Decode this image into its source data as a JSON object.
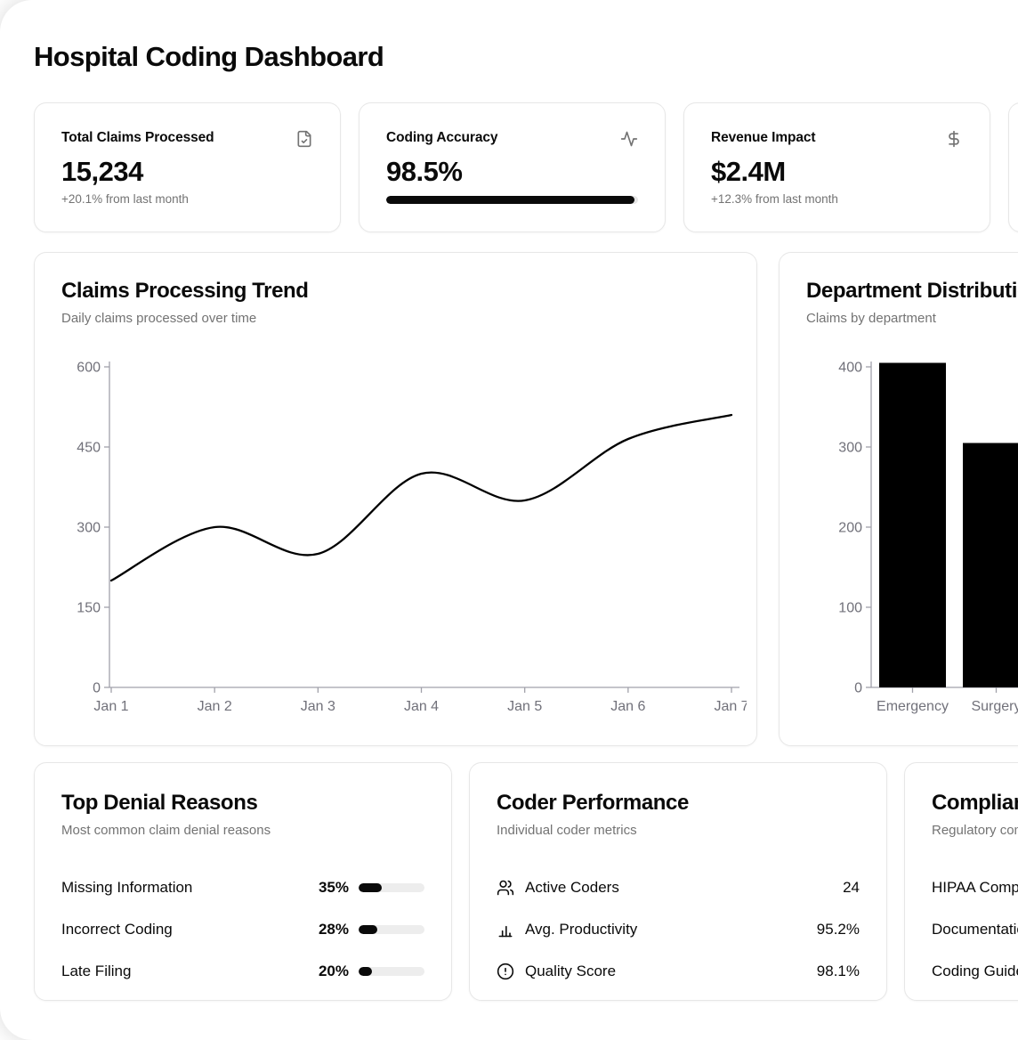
{
  "page": {
    "title": "Hospital Coding Dashboard"
  },
  "stats": [
    {
      "label": "Total Claims Processed",
      "value": "15,234",
      "sub": "+20.1% from last month",
      "icon": "file-check-icon"
    },
    {
      "label": "Coding Accuracy",
      "value": "98.5%",
      "progress_pct": 98.5,
      "icon": "activity-icon"
    },
    {
      "label": "Revenue Impact",
      "value": "$2.4M",
      "sub": "+12.3% from last month",
      "icon": "dollar-sign-icon"
    },
    {
      "label": "",
      "value": "",
      "sub": "",
      "icon": ""
    }
  ],
  "chart_data": [
    {
      "id": "claims_trend",
      "type": "line",
      "title": "Claims Processing Trend",
      "subtitle": "Daily claims processed over time",
      "x": [
        "Jan 1",
        "Jan 2",
        "Jan 3",
        "Jan 4",
        "Jan 5",
        "Jan 6",
        "Jan 7"
      ],
      "values": [
        200,
        300,
        250,
        400,
        350,
        465,
        510
      ],
      "xlabel": "",
      "ylabel": "",
      "ylim": [
        0,
        600
      ],
      "yticks": [
        0,
        150,
        300,
        450,
        600
      ],
      "grid": false,
      "legend": false,
      "line_color": "#000000"
    },
    {
      "id": "department",
      "type": "bar",
      "title": "Department Distribution",
      "subtitle": "Claims by department",
      "categories": [
        "Emergency",
        "Surgery"
      ],
      "values": [
        405,
        305
      ],
      "xlabel": "",
      "ylabel": "",
      "ylim": [
        0,
        400
      ],
      "yticks": [
        0,
        100,
        200,
        300,
        400
      ],
      "grid": false,
      "legend": false,
      "bar_color": "#000000"
    }
  ],
  "denials": {
    "title": "Top Denial Reasons",
    "subtitle": "Most common claim denial reasons",
    "items": [
      {
        "label": "Missing Information",
        "pct": "35%",
        "value": 35
      },
      {
        "label": "Incorrect Coding",
        "pct": "28%",
        "value": 28
      },
      {
        "label": "Late Filing",
        "pct": "20%",
        "value": 20
      }
    ]
  },
  "coders": {
    "title": "Coder Performance",
    "subtitle": "Individual coder metrics",
    "rows": [
      {
        "icon": "users-icon",
        "label": "Active Coders",
        "value": "24"
      },
      {
        "icon": "bar-chart-icon",
        "label": "Avg. Productivity",
        "value": "95.2%"
      },
      {
        "icon": "alert-circle-icon",
        "label": "Quality Score",
        "value": "98.1%"
      }
    ]
  },
  "compliance": {
    "title": "Compliance",
    "subtitle": "Regulatory compliance",
    "items": [
      {
        "label": "HIPAA Compliance"
      },
      {
        "label": "Documentation"
      },
      {
        "label": "Coding Guidelines"
      }
    ]
  },
  "colors": {
    "text": "#0a0a0a",
    "muted": "#737373",
    "border": "#e7e7e7",
    "axis": "#a1a1aa",
    "tick_label": "#71717a",
    "series": "#000000",
    "track": "#ededed"
  }
}
